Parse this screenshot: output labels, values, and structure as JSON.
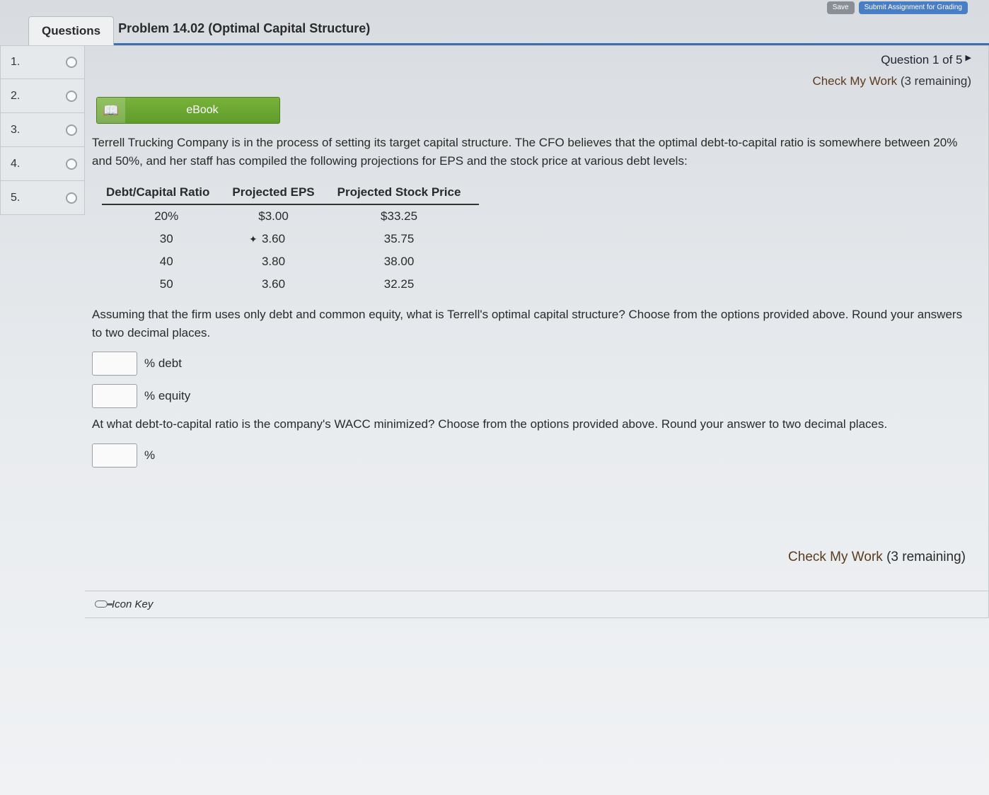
{
  "topbar": {
    "save": "Save",
    "submit": "Submit Assignment for Grading"
  },
  "tabs": {
    "questions": "Questions"
  },
  "problem_title": "Problem 14.02 (Optimal Capital Structure)",
  "question_indicator": "Question 1 of 5",
  "check_my_work": {
    "label": "Check My Work",
    "remaining": "(3 remaining)"
  },
  "qnav": [
    {
      "n": "1."
    },
    {
      "n": "2."
    },
    {
      "n": "3."
    },
    {
      "n": "4."
    },
    {
      "n": "5."
    }
  ],
  "ebook": "eBook",
  "intro": "Terrell Trucking Company is in the process of setting its target capital structure. The CFO believes that the optimal debt-to-capital ratio is somewhere between 20% and 50%, and her staff has compiled the following projections for EPS and the stock price at various debt levels:",
  "table": {
    "headers": [
      "Debt/Capital Ratio",
      "Projected EPS",
      "Projected Stock Price"
    ],
    "rows": [
      [
        "20%",
        "$3.00",
        "$33.25"
      ],
      [
        "30",
        "3.60",
        "35.75"
      ],
      [
        "40",
        "3.80",
        "38.00"
      ],
      [
        "50",
        "3.60",
        "32.25"
      ]
    ]
  },
  "q1": "Assuming that the firm uses only debt and common equity, what is Terrell's optimal capital structure? Choose from the options provided above. Round your answers to two decimal places.",
  "labels": {
    "debt": "% debt",
    "equity": "% equity",
    "pct": "%"
  },
  "q2": "At what debt-to-capital ratio is the company's WACC minimized? Choose from the options provided above. Round your answer to two decimal places.",
  "iconkey": "Icon Key"
}
